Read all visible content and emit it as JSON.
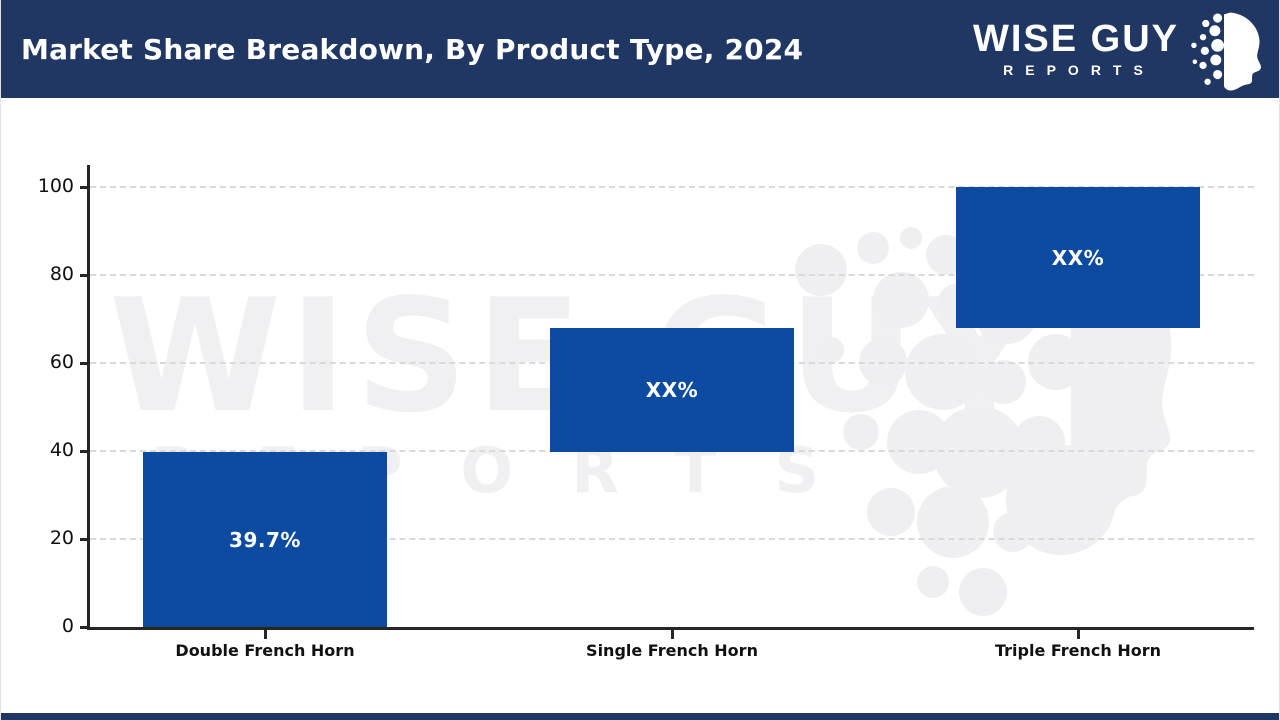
{
  "header": {
    "title": "Market Share Breakdown, By Product Type, 2024",
    "logo": {
      "primary": "WISE GUY",
      "secondary": "REPORTS"
    }
  },
  "watermark": {
    "primary": "WISE GUY",
    "secondary": "REPORTS"
  },
  "chart_data": {
    "type": "bar",
    "subtype": "floating-waterfall-segments",
    "title": "Market Share Breakdown, By Product Type, 2024",
    "categories": [
      "Double French Horn",
      "Single French Horn",
      "Triple French Horn"
    ],
    "segments": [
      {
        "category": "Double French Horn",
        "start": 0,
        "end": 39.7,
        "label": "39.7%"
      },
      {
        "category": "Single French Horn",
        "start": 39.7,
        "end": 67.9,
        "label": "XX%"
      },
      {
        "category": "Triple French Horn",
        "start": 67.9,
        "end": 100,
        "label": "XX%"
      }
    ],
    "xlabel": "",
    "ylabel": "",
    "ylim": [
      0,
      100
    ],
    "yticks": [
      0,
      20,
      40,
      60,
      80,
      100
    ],
    "grid": "horizontal-dashed",
    "legend": null
  },
  "colors": {
    "header_bg": "#213763",
    "footer_bg": "#213763",
    "bar": "#0d4ba1",
    "grid": "#d9d9d9",
    "axis": "#262626",
    "tick_text": "#111111",
    "bar_label_text": "#ffffff",
    "watermark": "#f0f0f3"
  }
}
